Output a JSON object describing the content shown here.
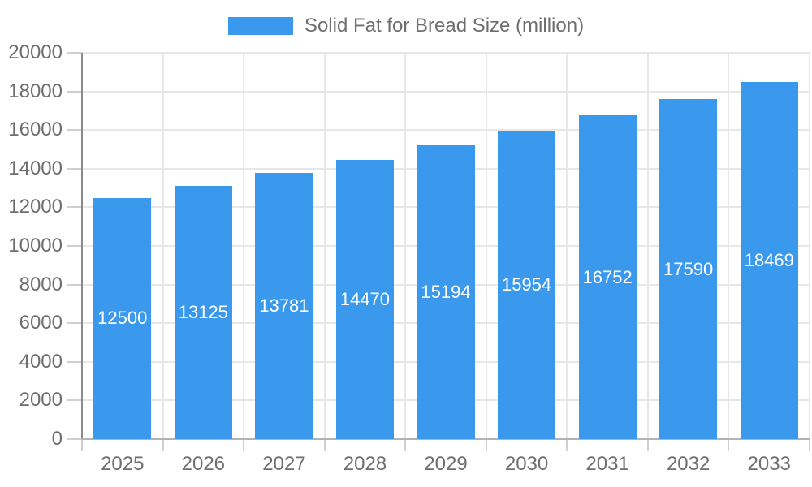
{
  "legend": {
    "label": "Solid Fat for Bread Size (million)"
  },
  "chart_data": {
    "type": "bar",
    "title": "Solid Fat for Bread Size (million)",
    "categories": [
      "2025",
      "2026",
      "2027",
      "2028",
      "2029",
      "2030",
      "2031",
      "2032",
      "2033"
    ],
    "values": [
      12500,
      13125,
      13781,
      14470,
      15194,
      15954,
      16752,
      17590,
      18469
    ],
    "series_name": "Solid Fat for Bread Size (million)",
    "xlabel": "",
    "ylabel": "",
    "ylim": [
      0,
      20000
    ],
    "yticks": [
      0,
      2000,
      4000,
      6000,
      8000,
      10000,
      12000,
      14000,
      16000,
      18000,
      20000
    ],
    "grid": true,
    "legend_position": "top",
    "value_labels_position": "inside-center"
  },
  "colors": {
    "bar": "#3a99ec",
    "value_label": "#ffffff",
    "axis_label": "#6e6e6e",
    "legend_text": "#6e6e6e",
    "gridline": "#e7e7e7",
    "tick": "#cfcfcf",
    "y_axis_line": "#8a8a8a",
    "x_axis_line": "#b3b3b3",
    "background": "#ffffff"
  }
}
